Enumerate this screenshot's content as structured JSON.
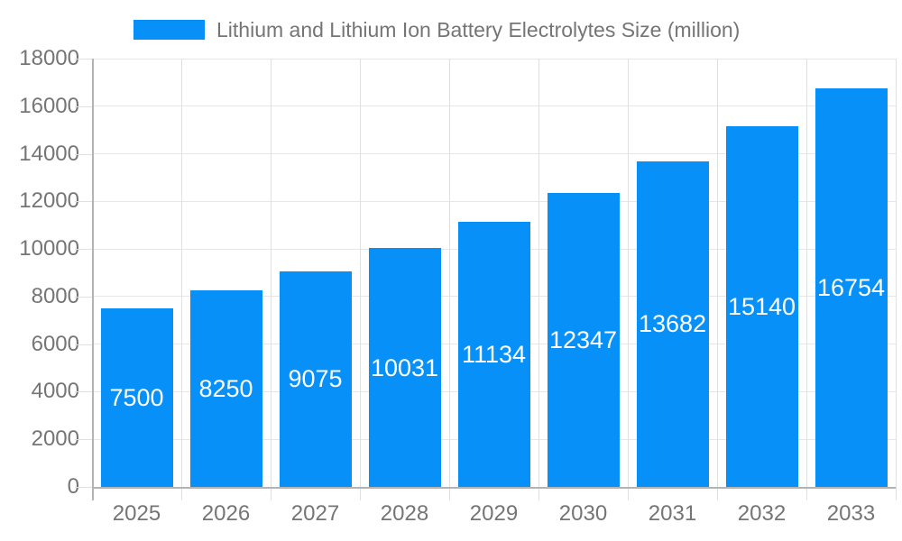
{
  "legend": {
    "label": "Lithium and Lithium Ion Battery Electrolytes Size (million)"
  },
  "colors": {
    "bar": "#0690f8",
    "axis_text": "#757575",
    "grid_horizontal": "#e6e6e6",
    "grid_vertical": "#e0e0e0",
    "axis_line": "#b3b3b3",
    "bar_label": "#ffffff",
    "background": "#ffffff"
  },
  "chart_data": {
    "type": "bar",
    "title": "Lithium and Lithium Ion Battery Electrolytes Size (million)",
    "categories": [
      "2025",
      "2026",
      "2027",
      "2028",
      "2029",
      "2030",
      "2031",
      "2032",
      "2033"
    ],
    "values": [
      7500,
      8250,
      9075,
      10031,
      11134,
      12347,
      13682,
      15140,
      16754
    ],
    "xlabel": "",
    "ylabel": "",
    "ylim": [
      0,
      18000
    ],
    "ytick_step": 2000,
    "grid": true,
    "legend_position": "top",
    "annotations": "inside-middle"
  }
}
